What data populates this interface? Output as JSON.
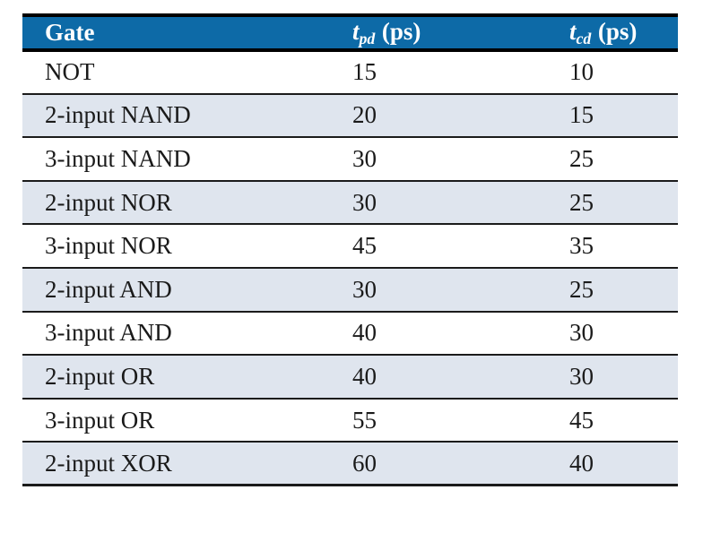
{
  "table": {
    "columns": {
      "gate_label": "Gate",
      "tpd": {
        "symbol": "t",
        "subscript": "pd",
        "unit": "(ps)"
      },
      "tcd": {
        "symbol": "t",
        "subscript": "cd",
        "unit": "(ps)"
      }
    },
    "rows": [
      {
        "gate": "NOT",
        "tpd": "15",
        "tcd": "10"
      },
      {
        "gate": "2-input NAND",
        "tpd": "20",
        "tcd": "15"
      },
      {
        "gate": "3-input NAND",
        "tpd": "30",
        "tcd": "25"
      },
      {
        "gate": "2-input NOR",
        "tpd": "30",
        "tcd": "25"
      },
      {
        "gate": "3-input NOR",
        "tpd": "45",
        "tcd": "35"
      },
      {
        "gate": "2-input AND",
        "tpd": "30",
        "tcd": "25"
      },
      {
        "gate": "3-input AND",
        "tpd": "40",
        "tcd": "30"
      },
      {
        "gate": "2-input OR",
        "tpd": "40",
        "tcd": "30"
      },
      {
        "gate": "3-input OR",
        "tpd": "55",
        "tcd": "45"
      },
      {
        "gate": "2-input XOR",
        "tpd": "60",
        "tcd": "40"
      }
    ]
  },
  "colors": {
    "header_bg": "#0d6aa7",
    "row_alt_bg": "#dfe5ee",
    "rule": "#1b1b1b",
    "border": "#000000",
    "header_text": "#ffffff",
    "body_text": "#1a1a1a"
  }
}
